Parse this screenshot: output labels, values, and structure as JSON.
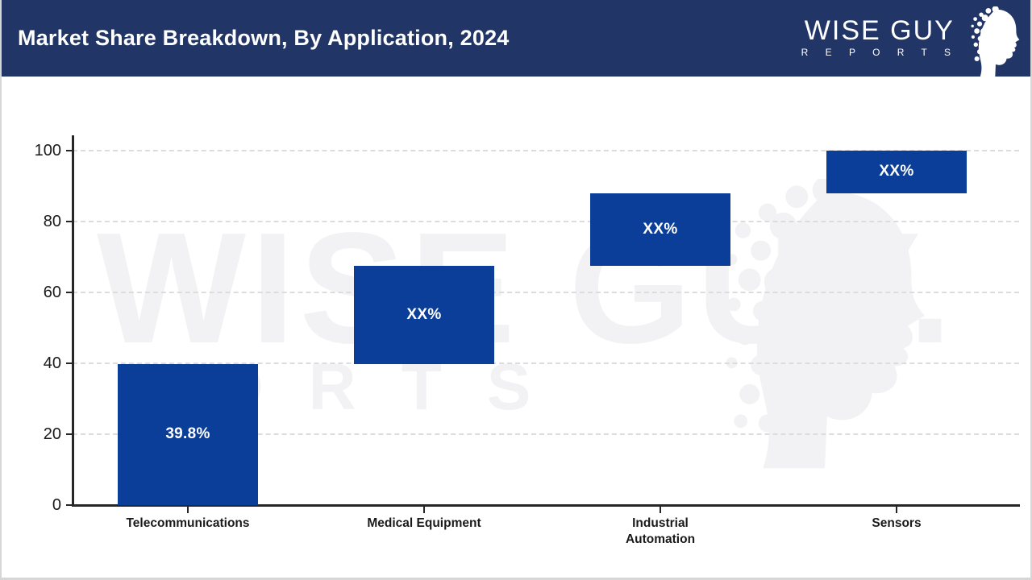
{
  "header": {
    "title": "Market Share Breakdown, By Application, 2024",
    "bg_color": "#213666",
    "logo": {
      "line1": "WISE GUY",
      "line2": "R E P O R T S"
    }
  },
  "watermark": {
    "line1": "WISE GUY.",
    "line2": "PORTS"
  },
  "colors": {
    "bar": "#0b3e98",
    "header_bg": "#213666",
    "watermark": "#f2f2f4",
    "gridline": "#dcdcdc",
    "axis": "#262626",
    "text": "#1a1a1a"
  },
  "chart_data": {
    "type": "bar",
    "subtype": "waterfall",
    "title": "Market Share Breakdown, By Application, 2024",
    "categories": [
      "Telecommunications",
      "Medical Equipment",
      "Industrial\nAutomation",
      "Sensors"
    ],
    "segments": [
      {
        "category": "Telecommunications",
        "start": 0,
        "end": 39.8,
        "value": 39.8,
        "label": "39.8%"
      },
      {
        "category": "Medical Equipment",
        "start": 39.8,
        "end": 67.5,
        "value": 27.7,
        "label": "XX%"
      },
      {
        "category": "Industrial Automation",
        "start": 67.5,
        "end": 88.0,
        "value": 20.5,
        "label": "XX%"
      },
      {
        "category": "Sensors",
        "start": 88.0,
        "end": 100,
        "value": 12.0,
        "label": "XX%"
      }
    ],
    "xlabel": "",
    "ylabel": "",
    "ylim": [
      0,
      100
    ],
    "yticks": [
      0,
      20,
      40,
      60,
      80,
      100
    ],
    "grid": true,
    "grid_style": "dashed",
    "legend": "none",
    "bar_color": "#0b3e98"
  }
}
